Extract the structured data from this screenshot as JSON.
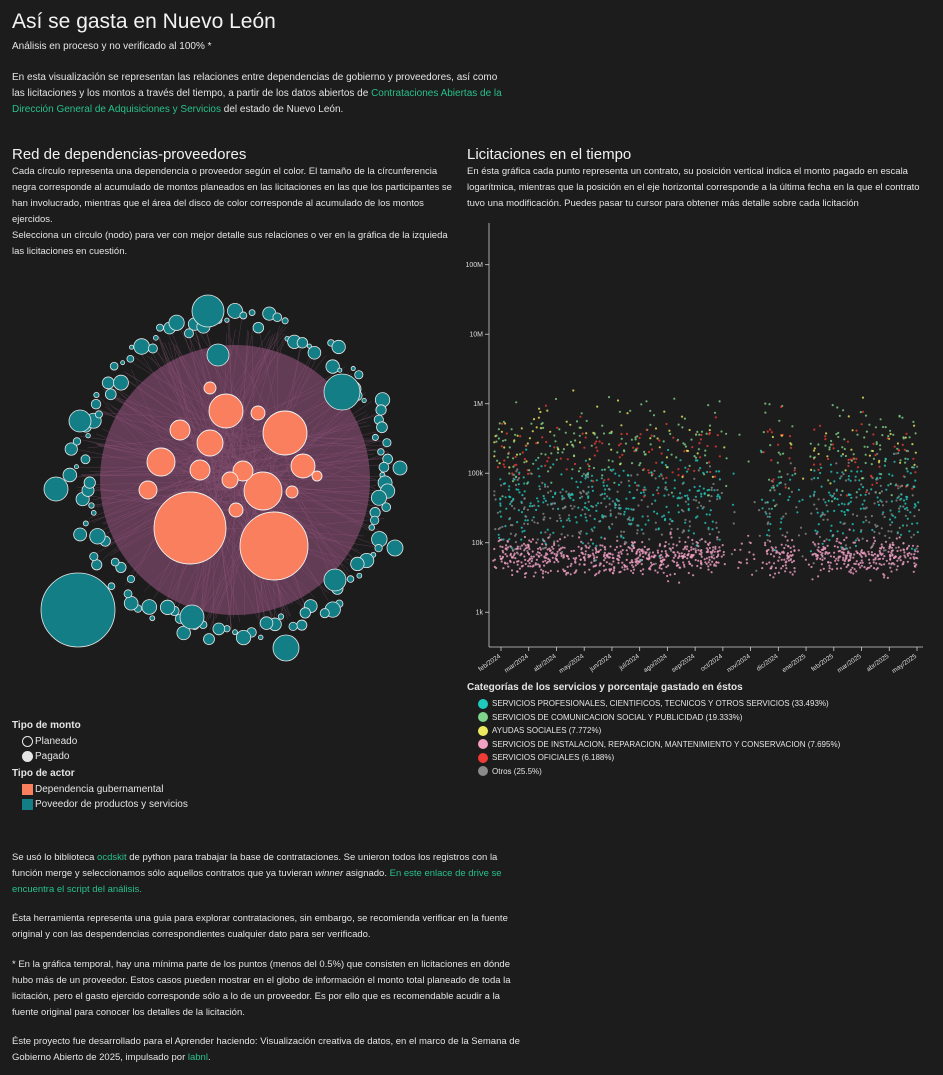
{
  "header": {
    "title": "Así se gasta en Nuevo León",
    "subtitle": "Análisis en proceso y no verificado al 100% *",
    "intro_before": "En esta visualización se representan las relaciones entre dependencias de gobierno y proveedores, así como las licitaciones y los montos a través del tiempo, a partir de los datos abiertos de ",
    "intro_link": "Contrataciones Abiertas de la Dirección General de Adquisiciones y Servicios",
    "intro_after": " del estado de Nuevo León."
  },
  "network_section": {
    "title": "Red de dependencias-proveedores",
    "desc1": "Cada círculo representa una dependencia o proveedor según el color. El tamaño de la círcunferencia negra corresponde al acumulado de montos planeados en las licitaciones en las que los participantes se han involucrado, mientras que el área del disco de color corresponde al acumulado de los montos ejercidos.",
    "desc2": "Selecciona un círculo (nodo) para ver con mejor detalle sus relaciones o ver en la gráfica de la izquieda las licitaciones en cuestión."
  },
  "timeline_section": {
    "title": "Licitaciones en el tiempo",
    "desc": "En ésta gráfica cada punto representa un contrato, su posición vertical indica el monto pagado en escala logarítmica, mientras que la posición en el eje horizontal corresponde a la última fecha en la que el contrato tuvo una modificación. Puedes pasar tu cursor para obtener más detalle sobre cada licitación"
  },
  "legend_left": {
    "tipo_monto": "Tipo de monto",
    "planeado": "Planeado",
    "pagado": "Pagado",
    "tipo_actor": "Tipo de actor",
    "dependencia": "Dependencia gubernamental",
    "proveedor": "Poveedor de productos y servicios",
    "colors": {
      "dependencia": "#fa7f5e",
      "proveedor": "#137e85"
    }
  },
  "legend_right": {
    "title": "Categorías de los servicios y porcentaje gastado en éstos",
    "items": [
      {
        "label": "SERVICIOS PROFESIONALES, CIENTIFICOS, TECNICOS Y OTROS SERVICIOS (33.493%)",
        "color": "#20c9bd"
      },
      {
        "label": "SERVICIOS DE COMUNICACION SOCIAL Y PUBLICIDAD (19.333%)",
        "color": "#7fd38a"
      },
      {
        "label": "AYUDAS SOCIALES (7.772%)",
        "color": "#ede860"
      },
      {
        "label": "SERVICIOS DE INSTALACION, REPARACION, MANTENIMIENTO Y CONSERVACION (7.695%)",
        "color": "#f2a0c4"
      },
      {
        "label": "SERVICIOS OFICIALES (6.188%)",
        "color": "#ee3b35"
      },
      {
        "label": "Otros (25.5%)",
        "color": "#8a8a8a"
      }
    ]
  },
  "chart_data": {
    "type": "scatter",
    "title": "",
    "xlabel": "",
    "ylabel": "",
    "y_scale": "log",
    "y_ticks": [
      {
        "label": "1k",
        "value": 1000
      },
      {
        "label": "10k",
        "value": 10000
      },
      {
        "label": "100k",
        "value": 100000
      },
      {
        "label": "1M",
        "value": 1000000
      },
      {
        "label": "10M",
        "value": 10000000
      },
      {
        "label": "100M",
        "value": 100000000
      }
    ],
    "x_ticks": [
      "feb/2024",
      "mar/2024",
      "abr/2024",
      "may/2024",
      "jun/2024",
      "jul/2024",
      "ago/2024",
      "sep/2024",
      "oct/2024",
      "nov/2024",
      "dic/2024",
      "ene/2025",
      "feb/2025",
      "mar/2025",
      "abr/2025",
      "may/2025"
    ],
    "series_colors": [
      "#20c9bd",
      "#7fd38a",
      "#ede860",
      "#f2a0c4",
      "#ee3b35",
      "#8a8a8a"
    ]
  },
  "footer": {
    "p1_a": "Se usó lo biblioteca ",
    "p1_link1": "ocdskit",
    "p1_b": " de python para trabajar la base de contrataciones. Se unieron todos los registros con la función merge y seleccionamos sólo aquellos contratos que ya tuvieran ",
    "p1_em": "winner",
    "p1_c": " asignado. ",
    "p1_link2": "En este enlace de drive se encuentra el script del análisis.",
    "p2": "Ésta herramienta representa una guia para explorar contrataciones, sin embargo, se recomienda verificar en la fuente original y con las despendencias correspondientes cualquier dato para ser verificado.",
    "p3": "* En la gráfica temporal, hay una mínima parte de los puntos (menos del 0.5%) que consisten en licitaciones en dónde hubo más de un proveedor. Estos casos pueden mostrar en el globo de información el monto total planeado de toda la licitación, pero el gasto ejercido corresponde sólo a lo de un proveedor. Es por ello que es recomendable acudir a la fuente original para conocer los detalles de la licitación.",
    "p4_a": "Éste proyecto fue desarrollado para el Aprender haciendo: Visualización creativa de datos, en el marco de la Semana de Gobierno Abierto de 2025, impulsado por ",
    "p4_link": "labnl",
    "p4_b": "."
  }
}
